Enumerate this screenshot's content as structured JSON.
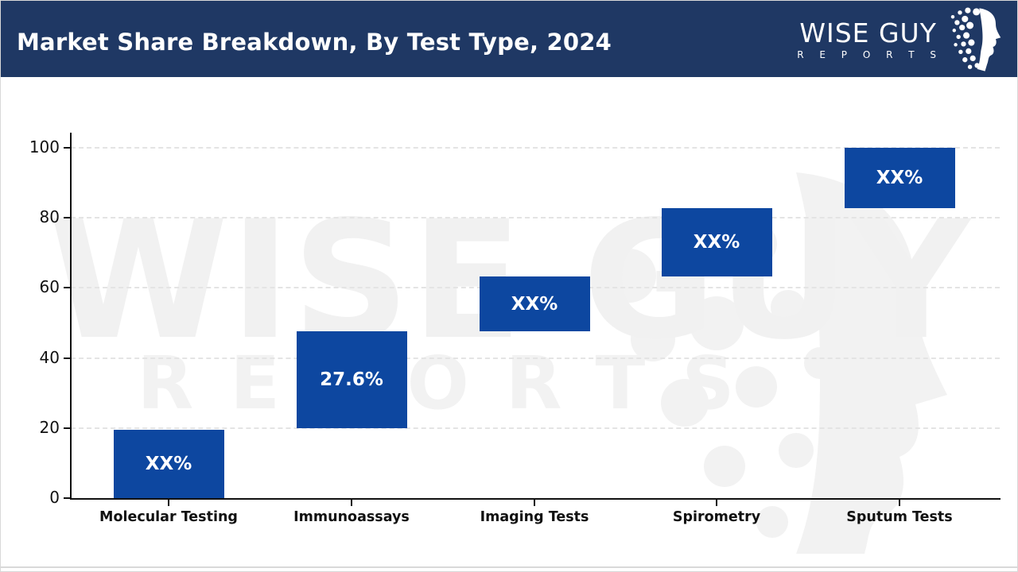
{
  "header": {
    "title": "Market Share Breakdown, By Test Type, 2024",
    "bg_color": "#1f3864",
    "logo": {
      "line1": "WISE GUY",
      "line2": "R E P O R T S"
    }
  },
  "watermark": {
    "line1": "WISE GUY",
    "line2": "REPORTS"
  },
  "chart_data": {
    "type": "bar",
    "subtype": "waterfall-floating-bars",
    "title": "Market Share Breakdown, By Test Type, 2024",
    "xlabel": "",
    "ylabel": "",
    "ylim": [
      0,
      100
    ],
    "y_ticks": [
      0,
      20,
      40,
      60,
      80,
      100
    ],
    "grid": "dashed-horizontal",
    "legend": "none",
    "bar_color": "#0d47a0",
    "label_color": "#ffffff",
    "categories": [
      "Molecular Testing",
      "Immunoassays",
      "Imaging Tests",
      "Spirometry",
      "Sputum Tests"
    ],
    "segments": [
      {
        "category": "Molecular Testing",
        "start": 0,
        "end": 19.5,
        "label": "XX%"
      },
      {
        "category": "Immunoassays",
        "start": 20,
        "end": 47.6,
        "label": "27.6%"
      },
      {
        "category": "Imaging Tests",
        "start": 47.6,
        "end": 63.2,
        "label": "XX%"
      },
      {
        "category": "Spirometry",
        "start": 63.2,
        "end": 82.8,
        "label": "XX%"
      },
      {
        "category": "Sputum Tests",
        "start": 82.8,
        "end": 100,
        "label": "XX%"
      }
    ]
  }
}
